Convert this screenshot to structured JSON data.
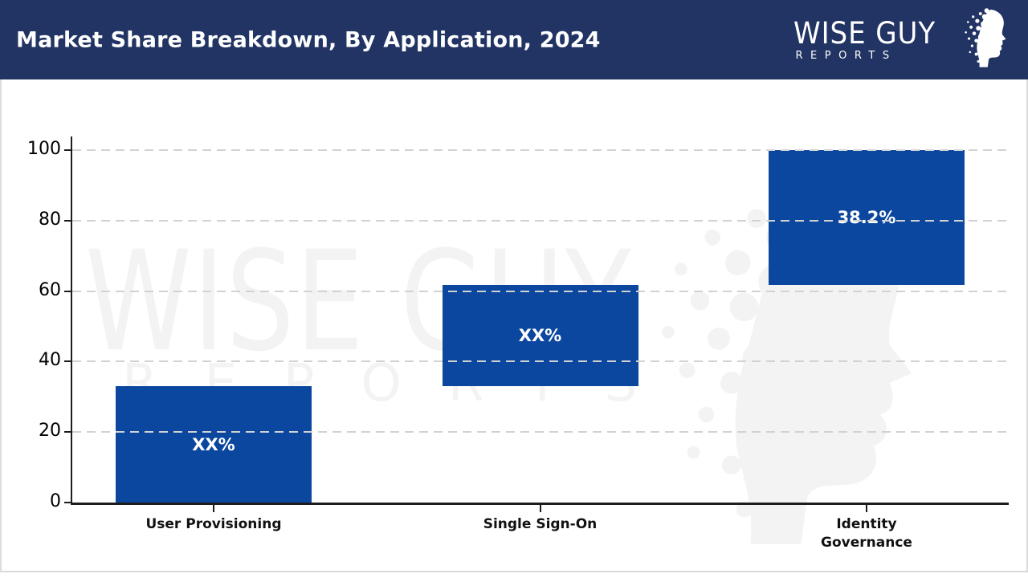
{
  "header": {
    "title": "Market Share Breakdown, By Application, 2024",
    "logo": {
      "line1": "WISE GUY",
      "line2": "REPORTS"
    }
  },
  "watermark": {
    "line1": "WISE GUY",
    "line2": "REPORTS"
  },
  "colors": {
    "header_bg": "#213463",
    "bar_fill": "#0b479f",
    "bar_label_text": "#ffffff",
    "watermark_gray": "#f3f3f3",
    "gridline": "#d2d2d2",
    "axis": "#1c1c1c"
  },
  "chart_data": {
    "type": "bar",
    "subtype": "waterfall-breakdown",
    "title": "Market Share Breakdown, By Application, 2024",
    "categories": [
      "User Provisioning",
      "Single Sign-On",
      "Identity\nGovernance"
    ],
    "segments": [
      {
        "category": "User Provisioning",
        "label": "XX%",
        "start": 0,
        "end": 33
      },
      {
        "category": "Single Sign-On",
        "label": "XX%",
        "start": 33,
        "end": 61.8
      },
      {
        "category": "Identity Governance",
        "label": "38.2%",
        "start": 61.8,
        "end": 100
      }
    ],
    "xlabel": "",
    "ylabel": "",
    "yticks": [
      0,
      20,
      40,
      60,
      80,
      100
    ],
    "ylim": [
      0,
      104
    ],
    "grid": "horizontal-dashed-over-bars",
    "legend": "none"
  }
}
